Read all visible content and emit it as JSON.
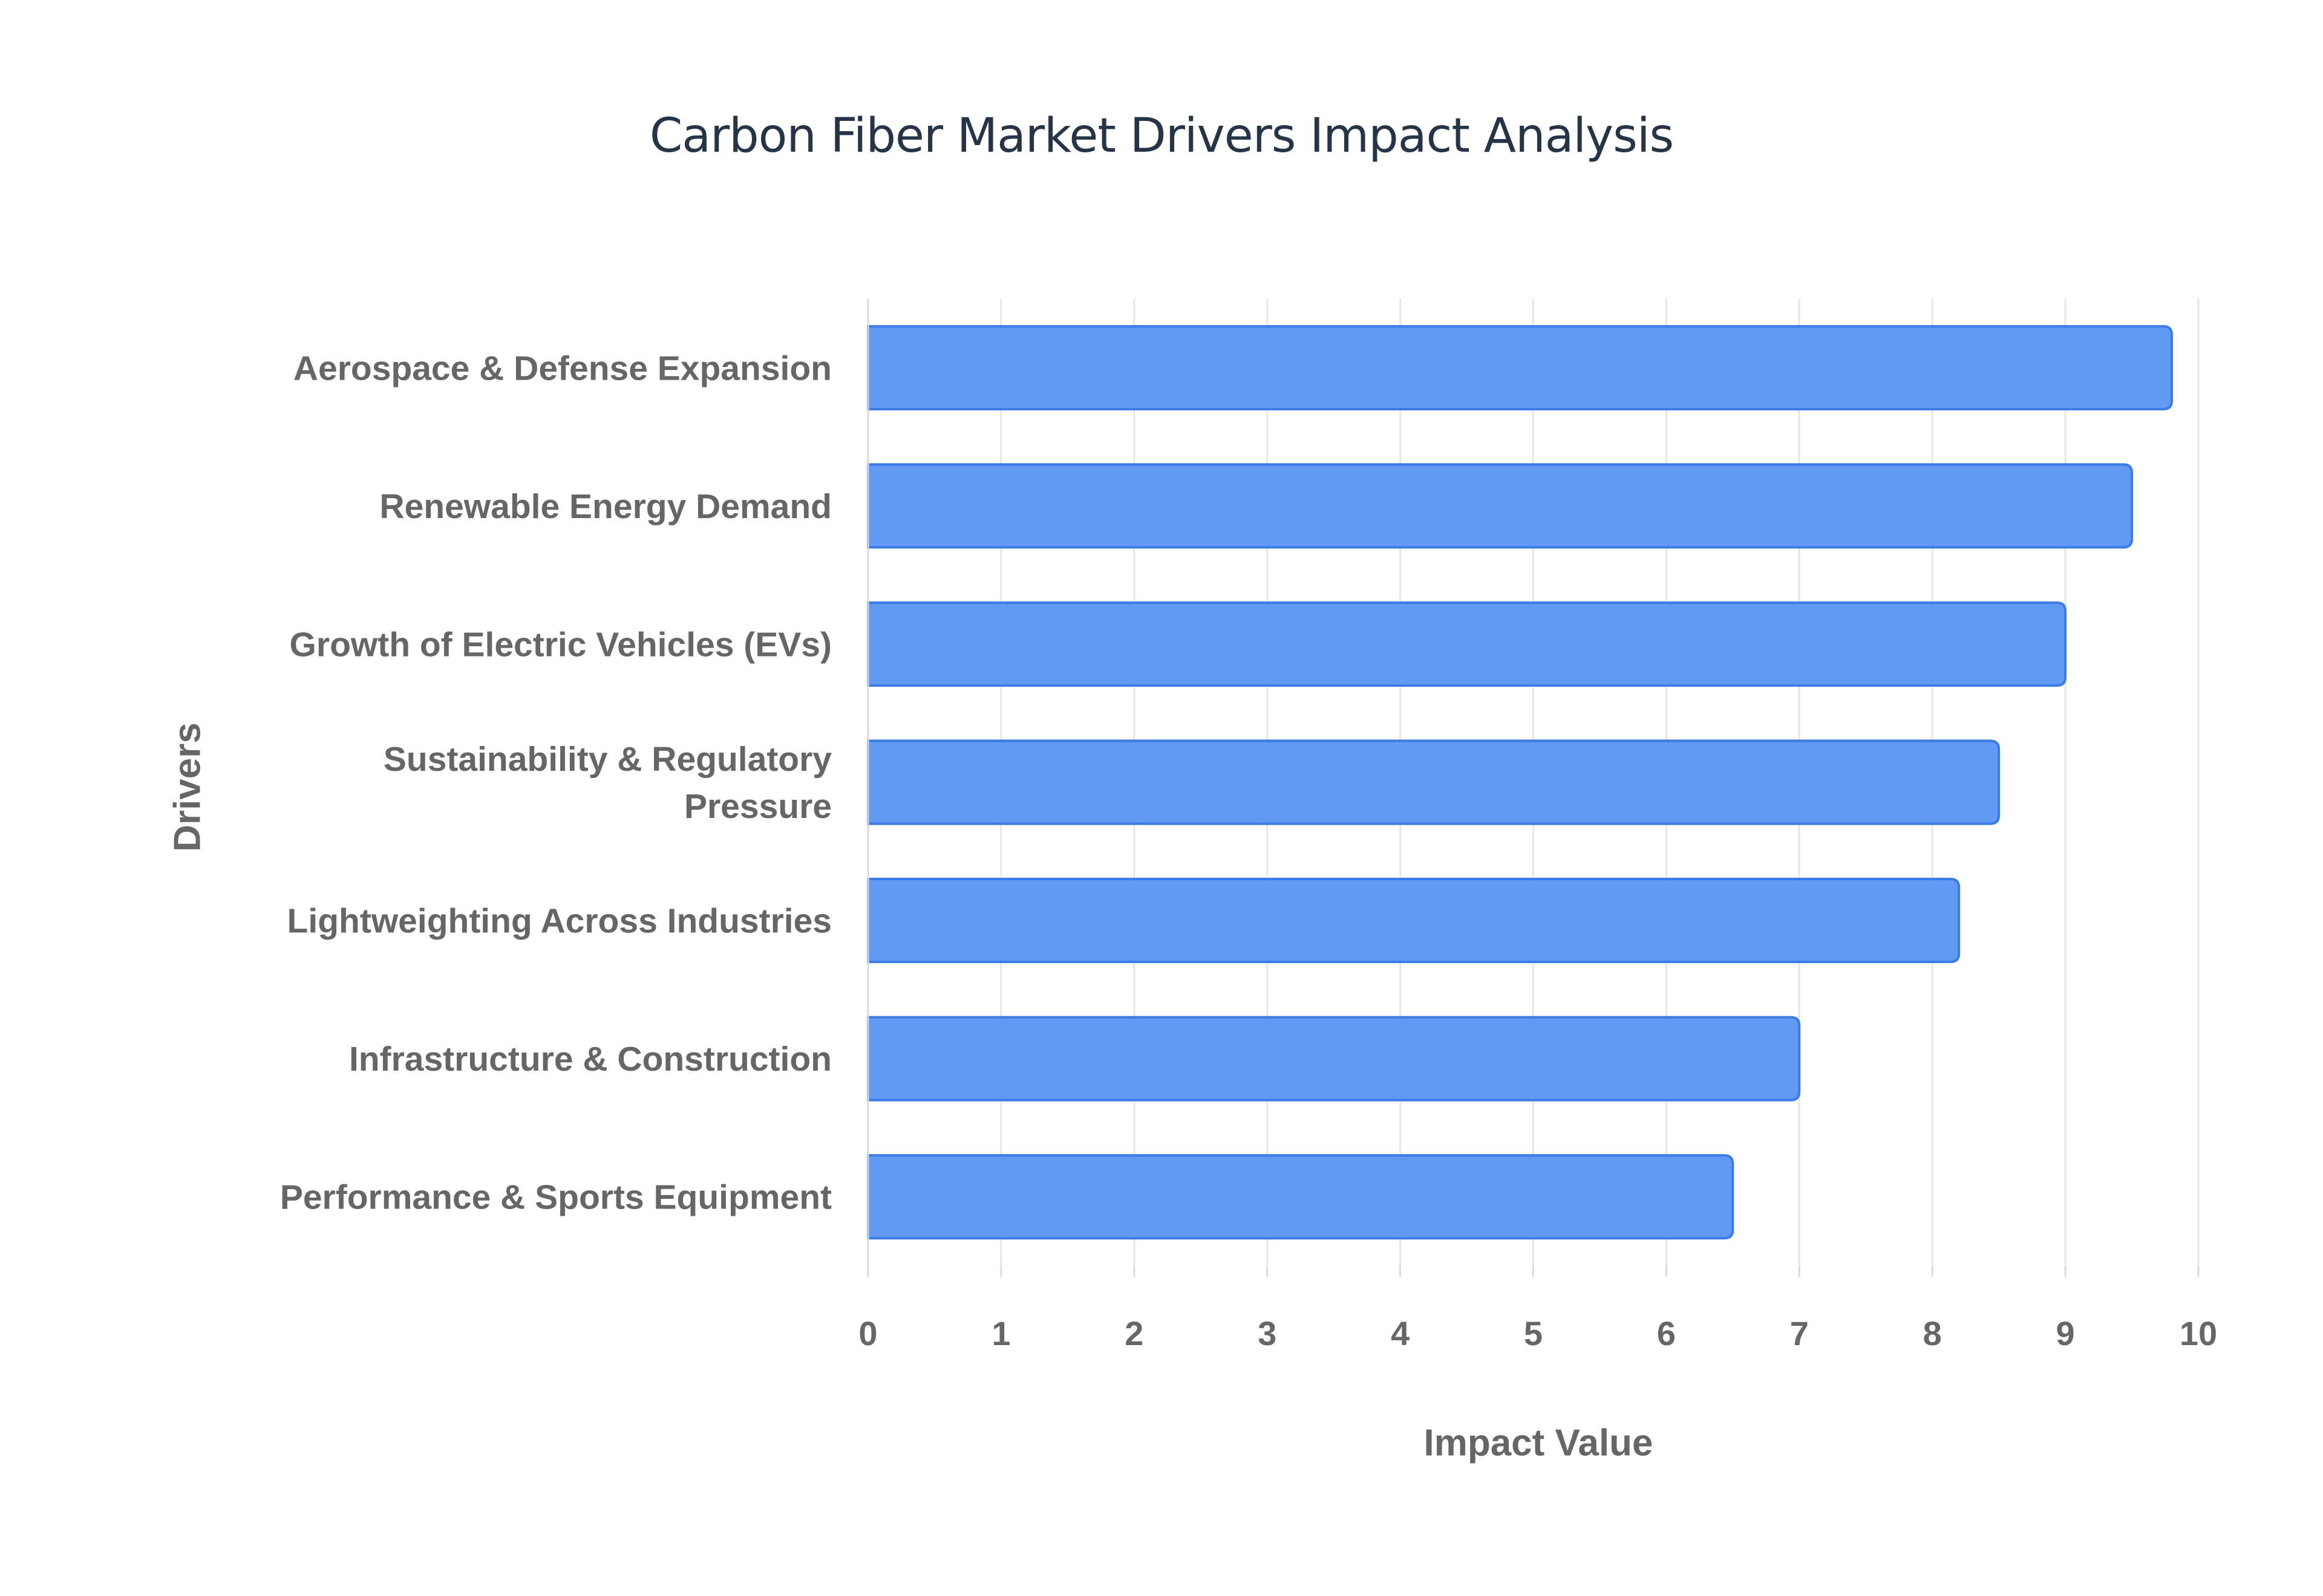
{
  "chart_data": {
    "type": "bar",
    "orientation": "horizontal",
    "title": "Carbon Fiber Market Drivers Impact Analysis",
    "xlabel": "Impact Value",
    "ylabel": "Drivers",
    "xlim": [
      0,
      10
    ],
    "x_ticks": [
      "0",
      "1",
      "2",
      "3",
      "4",
      "5",
      "6",
      "7",
      "8",
      "9",
      "10"
    ],
    "grid": true,
    "legend": "none",
    "bar_color": "#6199f5",
    "bar_border_color": "#3c7be6",
    "categories": [
      "Aerospace & Defense Expansion",
      "Renewable Energy Demand",
      "Growth of Electric Vehicles (EVs)",
      "Sustainability & Regulatory Pressure",
      "Lightweighting Across Industries",
      "Infrastructure & Construction",
      "Performance & Sports Equipment"
    ],
    "values": [
      9.8,
      9.5,
      9.0,
      8.5,
      8.2,
      7.0,
      6.5
    ]
  }
}
